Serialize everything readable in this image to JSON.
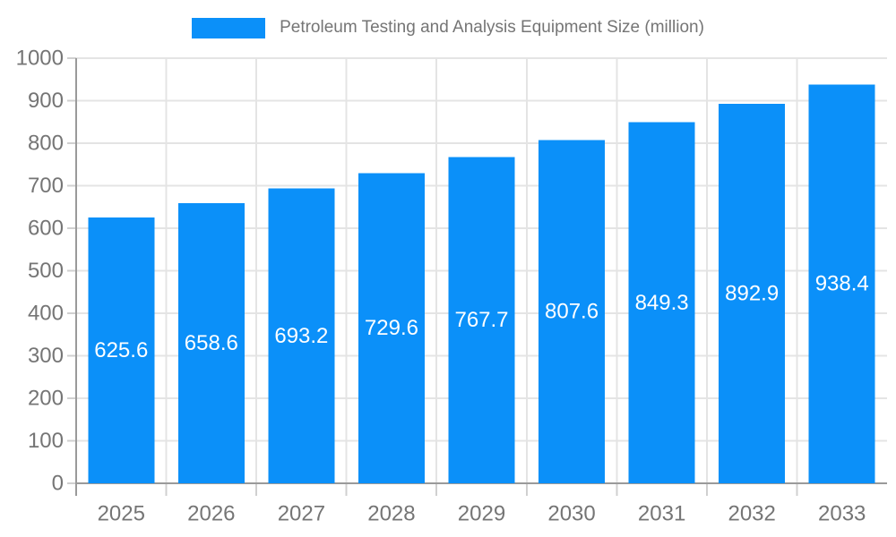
{
  "legend": {
    "label": "Petroleum Testing and Analysis Equipment Size (million)"
  },
  "colors": {
    "bar": "#0b90f9",
    "axis_text": "#757575",
    "legend_text": "#757575",
    "bar_label_text": "#ffffff",
    "grid_line": "#e4e4e4",
    "axis_line": "#9a9a9a",
    "tick_line": "#d0d0d0",
    "background": "#ffffff"
  },
  "chart_data": {
    "type": "bar",
    "title": "Petroleum Testing and Analysis Equipment Size (million)",
    "xlabel": "",
    "ylabel": "",
    "categories": [
      "2025",
      "2026",
      "2027",
      "2028",
      "2029",
      "2030",
      "2031",
      "2032",
      "2033"
    ],
    "values": [
      625.6,
      658.6,
      693.2,
      729.6,
      767.7,
      807.6,
      849.3,
      892.9,
      938.4
    ],
    "series": [
      {
        "name": "Petroleum Testing and Analysis Equipment Size (million)",
        "values": [
          625.6,
          658.6,
          693.2,
          729.6,
          767.7,
          807.6,
          849.3,
          892.9,
          938.4
        ]
      }
    ],
    "ylim": [
      0,
      1000
    ],
    "ytick_step": 100,
    "grid": true,
    "legend_position": "top",
    "value_labels_inside_bars": true
  }
}
